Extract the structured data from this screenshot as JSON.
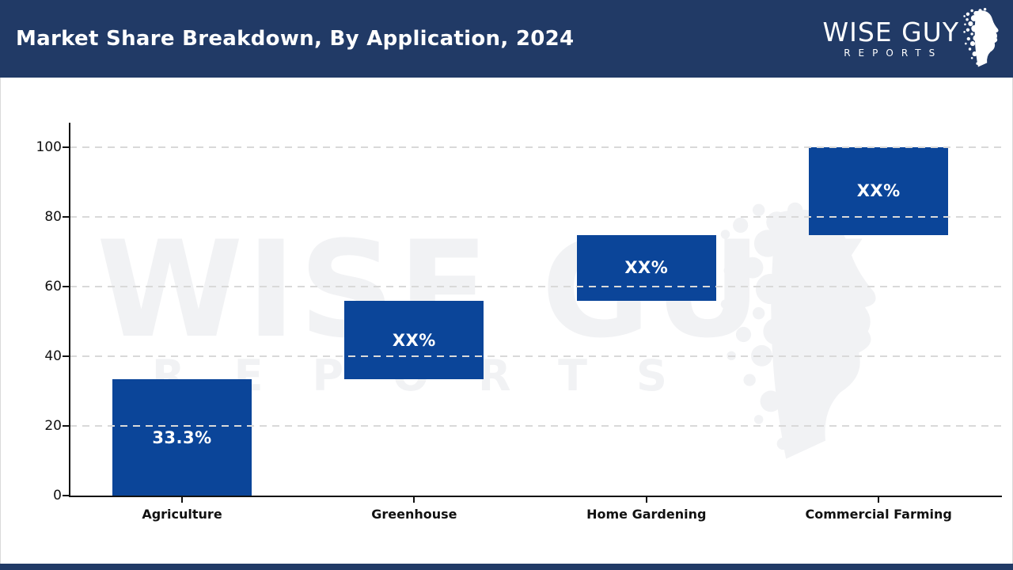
{
  "header": {
    "title": "Market Share Breakdown, By Application, 2024",
    "logo": {
      "name": "WISE GUY",
      "subtitle": "REPORTS"
    }
  },
  "watermark": {
    "line1": "WISE GUY",
    "line2": "REPORTS"
  },
  "colors": {
    "header_bg": "#213a66",
    "bar": "#0b4599",
    "bar_label": "#ffffff",
    "grid": "#d9d9d9",
    "axis": "#111111",
    "watermark": "#f1f2f4"
  },
  "chart_data": {
    "type": "bar",
    "subtype": "floating-waterfall-columns",
    "title": "Market Share Breakdown, By Application, 2024",
    "categories": [
      "Agriculture",
      "Greenhouse",
      "Home Gardening",
      "Commercial Farming"
    ],
    "series": [
      {
        "name": "Market Share (%)",
        "segments": [
          {
            "category": "Agriculture",
            "start": 0,
            "end": 33.3,
            "label": "33.3%"
          },
          {
            "category": "Greenhouse",
            "start": 33.3,
            "end": 55.9,
            "label": "XX%"
          },
          {
            "category": "Home Gardening",
            "start": 55.9,
            "end": 74.8,
            "label": "XX%"
          },
          {
            "category": "Commercial Farming",
            "start": 74.8,
            "end": 100,
            "label": "XX%"
          }
        ]
      }
    ],
    "xlabel": "",
    "ylabel": "",
    "yticks": [
      0,
      20,
      40,
      60,
      80,
      100
    ],
    "ylim": [
      0,
      107
    ],
    "grid": "horizontal-dashed",
    "legend": "none"
  }
}
